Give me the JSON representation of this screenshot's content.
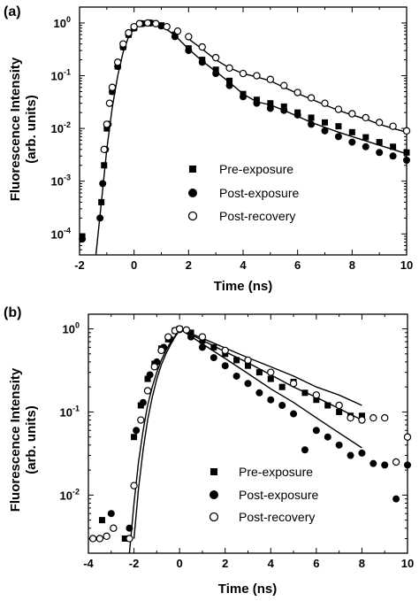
{
  "chart_data": [
    {
      "panel_label": "(a)",
      "type": "scatter",
      "xlabel": "Time (ns)",
      "ylabel_line1": "Fluorescence Intensity",
      "ylabel_line2": "(arb. units)",
      "xlim": [
        -2,
        10
      ],
      "ylim": [
        4e-05,
        2
      ],
      "yscale": "log",
      "xticks": [
        -2,
        0,
        2,
        4,
        6,
        8,
        10
      ],
      "xtick_labels": [
        "-2",
        "0",
        "2",
        "4",
        "6",
        "8",
        "10"
      ],
      "yticks": [
        0.0001,
        0.001,
        0.01,
        0.1,
        1
      ],
      "ytick_labels": [
        [
          "10",
          "-4"
        ],
        [
          "10",
          "-3"
        ],
        [
          "10",
          "-2"
        ],
        [
          "10",
          "-1"
        ],
        [
          "10",
          "0"
        ]
      ],
      "legend_position": "lower-right",
      "series": [
        {
          "name": "Pre-exposure",
          "marker": "filled-square",
          "x": [
            -1.9,
            -1.3,
            -1.2,
            -1.1,
            -1.0,
            -0.8,
            -0.6,
            -0.4,
            -0.2,
            0.0,
            0.3,
            0.6,
            1.0,
            1.5,
            2.0,
            2.5,
            3.0,
            3.5,
            4.0,
            4.5,
            5.0,
            5.5,
            6.0,
            6.5,
            7.0,
            7.5,
            8.0,
            8.5,
            9.0,
            9.5,
            10.0
          ],
          "y": [
            9e-05,
            3e-05,
            0.0004,
            0.002,
            0.01,
            0.05,
            0.15,
            0.35,
            0.6,
            0.8,
            0.97,
            1.0,
            0.9,
            0.6,
            0.33,
            0.2,
            0.13,
            0.08,
            0.045,
            0.035,
            0.03,
            0.026,
            0.02,
            0.016,
            0.013,
            0.011,
            0.0085,
            0.0068,
            0.0055,
            0.0045,
            0.0035
          ]
        },
        {
          "name": "Post-exposure",
          "marker": "filled-circle",
          "x": [
            -1.9,
            -1.25,
            -1.15,
            -1.05,
            -0.95,
            -0.8,
            -0.6,
            -0.4,
            -0.2,
            0.0,
            0.3,
            0.6,
            1.0,
            1.5,
            2.0,
            2.5,
            3.0,
            3.5,
            4.0,
            4.5,
            5.0,
            5.5,
            6.0,
            6.5,
            7.0,
            7.5,
            8.0,
            8.5,
            9.0,
            9.5,
            10.0
          ],
          "y": [
            8e-05,
            0.0002,
            0.0009,
            0.004,
            0.012,
            0.05,
            0.15,
            0.35,
            0.6,
            0.8,
            0.97,
            1.0,
            0.88,
            0.55,
            0.3,
            0.18,
            0.11,
            0.065,
            0.04,
            0.03,
            0.024,
            0.022,
            0.018,
            0.012,
            0.009,
            0.007,
            0.0055,
            0.0045,
            0.0035,
            0.003,
            0.0025
          ]
        },
        {
          "name": "Post-recovery",
          "marker": "open-circle",
          "x": [
            -1.1,
            -1.0,
            -0.9,
            -0.8,
            -0.6,
            -0.4,
            -0.2,
            0.0,
            0.2,
            0.5,
            0.8,
            1.2,
            1.6,
            2.0,
            2.5,
            3.0,
            3.5,
            4.0,
            4.5,
            5.0,
            5.5,
            6.0,
            6.5,
            7.0,
            7.5,
            8.0,
            8.5,
            9.0,
            9.5,
            10.0
          ],
          "y": [
            0.004,
            0.012,
            0.03,
            0.06,
            0.18,
            0.4,
            0.65,
            0.85,
            0.97,
            1.0,
            0.97,
            0.85,
            0.7,
            0.55,
            0.35,
            0.22,
            0.14,
            0.11,
            0.1,
            0.085,
            0.065,
            0.048,
            0.038,
            0.03,
            0.023,
            0.019,
            0.016,
            0.013,
            0.011,
            0.009
          ]
        }
      ],
      "fit_curves": [
        {
          "x": [
            -1.4,
            -1.2,
            -1.0,
            -0.8,
            -0.6,
            -0.4,
            -0.2,
            0.0,
            0.3,
            0.6,
            1.0,
            1.5,
            2.0,
            2.5,
            3.0,
            3.5,
            4.0,
            4.5,
            5.0,
            5.5,
            6.0,
            6.5,
            7.0,
            7.5,
            8.0,
            8.5,
            9.0,
            9.5,
            10.0
          ],
          "y": [
            4e-05,
            0.0004,
            0.004,
            0.025,
            0.1,
            0.28,
            0.55,
            0.78,
            0.96,
            1.0,
            0.9,
            0.58,
            0.32,
            0.19,
            0.12,
            0.075,
            0.045,
            0.032,
            0.028,
            0.022,
            0.017,
            0.013,
            0.0105,
            0.0085,
            0.007,
            0.0058,
            0.0048,
            0.004,
            0.0033
          ]
        },
        {
          "x": [
            2.0,
            2.5,
            3.0,
            3.5,
            4.0,
            4.5,
            5.0,
            5.5,
            6.0,
            6.5,
            7.0,
            7.5,
            8.0,
            8.5,
            9.0,
            9.5,
            10.0
          ],
          "y": [
            0.5,
            0.32,
            0.2,
            0.14,
            0.11,
            0.095,
            0.08,
            0.06,
            0.046,
            0.036,
            0.028,
            0.022,
            0.018,
            0.015,
            0.012,
            0.01,
            0.0085
          ]
        }
      ]
    },
    {
      "panel_label": "(b)",
      "type": "scatter",
      "xlabel": "Time (ns)",
      "ylabel_line1": "Fluorescence Intensity",
      "ylabel_line2": "(arb. units)",
      "xlim": [
        -4,
        10
      ],
      "ylim": [
        0.002,
        1.5
      ],
      "yscale": "log",
      "xticks": [
        -4,
        -2,
        0,
        2,
        4,
        6,
        8,
        10
      ],
      "xtick_labels": [
        "-4",
        "-2",
        "0",
        "2",
        "4",
        "6",
        "8",
        "10"
      ],
      "yticks": [
        0.01,
        0.1,
        1
      ],
      "ytick_labels": [
        [
          "10",
          "-2"
        ],
        [
          "10",
          "-1"
        ],
        [
          "10",
          "0"
        ]
      ],
      "legend_position": "lower-right",
      "series": [
        {
          "name": "Pre-exposure",
          "marker": "filled-square",
          "x": [
            -3.4,
            -2.4,
            -2.0,
            -1.7,
            -1.4,
            -1.1,
            -0.8,
            -0.5,
            -0.2,
            0.0,
            0.5,
            1.0,
            1.5,
            2.0,
            2.5,
            3.0,
            3.5,
            4.0,
            4.5,
            5.0,
            5.5,
            6.0,
            6.5,
            7.0,
            7.5,
            8.0
          ],
          "y": [
            0.005,
            0.003,
            0.05,
            0.12,
            0.25,
            0.38,
            0.58,
            0.75,
            0.95,
            1.0,
            0.9,
            0.72,
            0.6,
            0.5,
            0.42,
            0.36,
            0.3,
            0.25,
            0.2,
            0.23,
            0.17,
            0.14,
            0.12,
            0.1,
            0.09,
            0.09
          ]
        },
        {
          "name": "Post-exposure",
          "marker": "filled-circle",
          "x": [
            -3.0,
            -2.2,
            -1.9,
            -1.6,
            -1.3,
            -1.0,
            -0.7,
            -0.4,
            -0.2,
            0.0,
            0.5,
            1.0,
            1.5,
            2.0,
            2.5,
            3.0,
            3.5,
            4.0,
            4.5,
            5.0,
            5.5,
            6.0,
            6.5,
            7.0,
            7.5,
            8.0,
            8.5,
            9.0,
            9.5,
            10.0
          ],
          "y": [
            0.006,
            0.004,
            0.06,
            0.13,
            0.28,
            0.4,
            0.6,
            0.75,
            0.95,
            0.98,
            0.8,
            0.6,
            0.45,
            0.36,
            0.27,
            0.22,
            0.17,
            0.14,
            0.12,
            0.095,
            0.035,
            0.06,
            0.05,
            0.04,
            0.03,
            0.032,
            0.024,
            0.023,
            0.009,
            0.023
          ]
        },
        {
          "name": "Post-recovery",
          "marker": "open-circle",
          "x": [
            -3.8,
            -3.5,
            -3.2,
            -2.9,
            -2.2,
            -2.0,
            -1.7,
            -1.4,
            -1.1,
            -0.8,
            -0.5,
            -0.2,
            0.0,
            0.3,
            1.0,
            2.0,
            3.0,
            4.0,
            5.0,
            6.0,
            7.0,
            7.5,
            8.0,
            8.5,
            9.0,
            9.5,
            10.0
          ],
          "y": [
            0.003,
            0.003,
            0.0032,
            0.004,
            0.003,
            0.013,
            0.08,
            0.18,
            0.35,
            0.55,
            0.8,
            0.95,
            1.0,
            0.97,
            0.8,
            0.55,
            0.42,
            0.3,
            0.22,
            0.16,
            0.12,
            0.085,
            0.08,
            0.085,
            0.085,
            0.025,
            0.05
          ]
        }
      ],
      "fit_curves": [
        {
          "x": [
            -2.2,
            -2.0,
            -1.8,
            -1.6,
            -1.4,
            -1.2,
            -1.0,
            -0.8,
            -0.6,
            -0.4,
            -0.2,
            0.0
          ],
          "y": [
            0.002,
            0.008,
            0.025,
            0.06,
            0.12,
            0.2,
            0.3,
            0.42,
            0.55,
            0.68,
            0.82,
            0.98
          ]
        },
        {
          "x": [
            -2.0,
            -1.8,
            -1.6,
            -1.4,
            -1.2,
            -1.0,
            -0.8,
            -0.6,
            -0.4,
            -0.2,
            0.0
          ],
          "y": [
            0.003,
            0.012,
            0.035,
            0.08,
            0.15,
            0.25,
            0.37,
            0.5,
            0.64,
            0.8,
            0.96
          ]
        },
        {
          "x": [
            0.0,
            1.0,
            2.0,
            3.0,
            4.0,
            5.0,
            6.0,
            7.0,
            8.0
          ],
          "y": [
            1.0,
            0.73,
            0.53,
            0.39,
            0.28,
            0.2,
            0.15,
            0.11,
            0.08
          ]
        },
        {
          "x": [
            0.0,
            1.0,
            2.0,
            3.0,
            4.0,
            5.0,
            6.0,
            7.0,
            8.0
          ],
          "y": [
            1.0,
            0.77,
            0.59,
            0.45,
            0.35,
            0.27,
            0.2,
            0.16,
            0.12
          ]
        },
        {
          "x": [
            0.0,
            1.0,
            2.0,
            3.0,
            4.0,
            5.0,
            6.0,
            7.0,
            8.0
          ],
          "y": [
            1.0,
            0.66,
            0.44,
            0.29,
            0.19,
            0.13,
            0.085,
            0.056,
            0.037
          ]
        }
      ]
    }
  ]
}
